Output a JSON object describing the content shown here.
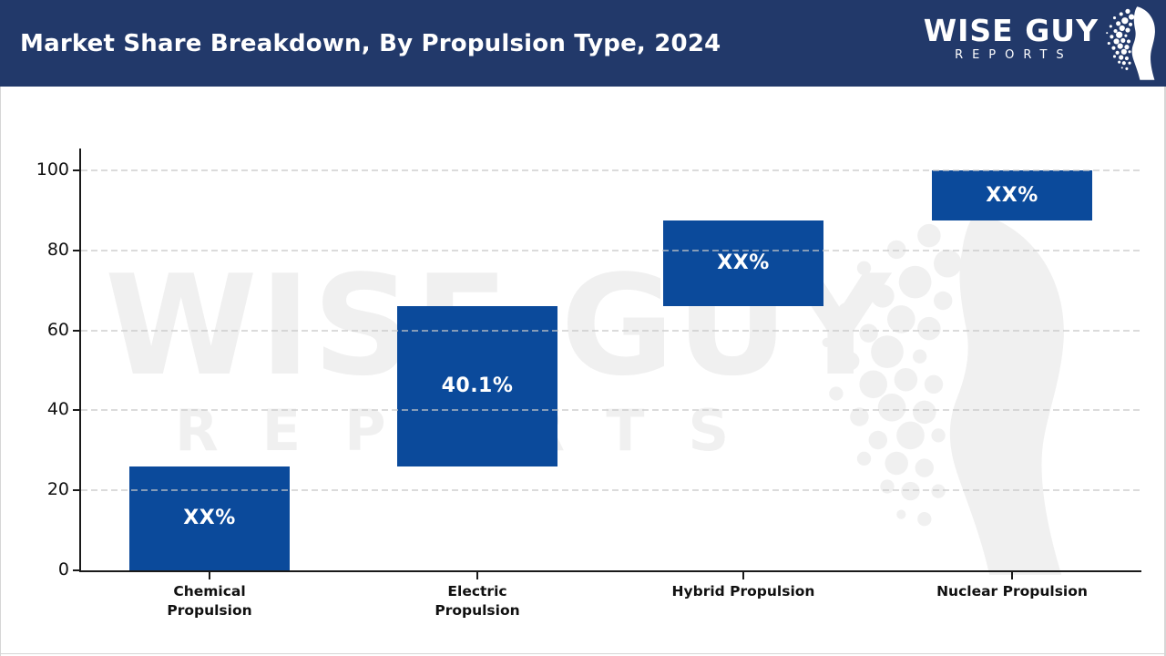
{
  "header": {
    "title": "Market Share Breakdown, By Propulsion Type, 2024",
    "logo": {
      "line1": "WISE GUY",
      "line2": "REPORTS"
    }
  },
  "watermark": {
    "line1": "WISE GUY",
    "line2": "REPORTS"
  },
  "colors": {
    "header_bg": "#22396A",
    "bar": "#0B4A9B",
    "axis": "#1a1a1a",
    "watermark": "#f0f0f0",
    "bar_label": "#ffffff"
  },
  "chart_data": {
    "type": "bar",
    "variant": "waterfall-stacked-share",
    "title": "Market Share Breakdown, By Propulsion Type, 2024",
    "categories": [
      "Chemical Propulsion",
      "Electric Propulsion",
      "Hybrid Propulsion",
      "Nuclear Propulsion"
    ],
    "category_lines": [
      [
        "Chemical",
        "Propulsion"
      ],
      [
        "Electric",
        "Propulsion"
      ],
      [
        "Hybrid Propulsion"
      ],
      [
        "Nuclear Propulsion"
      ]
    ],
    "segments": [
      {
        "category": "Chemical Propulsion",
        "start": 0,
        "end": 26,
        "label": "XX%"
      },
      {
        "category": "Electric Propulsion",
        "start": 26,
        "end": 66.1,
        "label": "40.1%",
        "value": 40.1
      },
      {
        "category": "Hybrid Propulsion",
        "start": 66.1,
        "end": 87.5,
        "label": "XX%"
      },
      {
        "category": "Nuclear Propulsion",
        "start": 87.5,
        "end": 100,
        "label": "XX%"
      }
    ],
    "ylim": [
      0,
      100
    ],
    "yticks": [
      0,
      20,
      40,
      60,
      80,
      100
    ],
    "xlabel": "",
    "ylabel": "",
    "grid": "horizontal-dashed-drawn-over-bars",
    "legend": "none"
  }
}
